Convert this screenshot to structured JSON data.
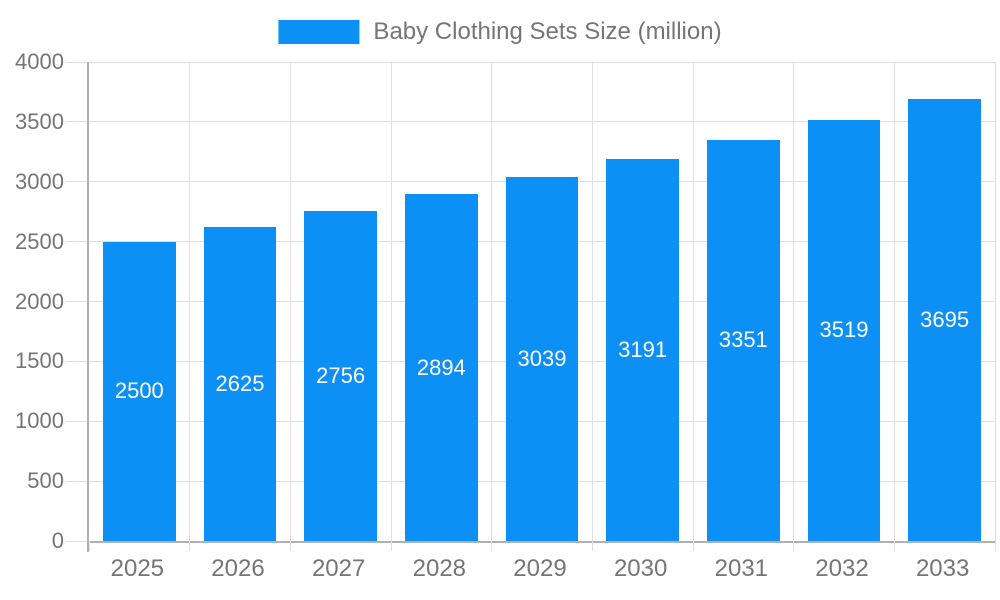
{
  "chart_data": {
    "type": "bar",
    "title": "",
    "legend": {
      "label": "Baby Clothing Sets Size (million)",
      "position": "top"
    },
    "categories": [
      "2025",
      "2026",
      "2027",
      "2028",
      "2029",
      "2030",
      "2031",
      "2032",
      "2033"
    ],
    "series": [
      {
        "name": "Baby Clothing Sets Size (million)",
        "values": [
          2500,
          2625,
          2756,
          2894,
          3039,
          3191,
          3351,
          3519,
          3695
        ]
      }
    ],
    "value_labels": [
      "2500",
      "2625",
      "2756",
      "2894",
      "3039",
      "3191",
      "3351",
      "3519",
      "3695"
    ],
    "ylabel": "",
    "xlabel": "",
    "ylim": [
      0,
      4000
    ],
    "ytick_step": 500,
    "ytick_labels": [
      "0",
      "500",
      "1000",
      "1500",
      "2000",
      "2500",
      "3000",
      "3500",
      "4000"
    ],
    "grid": true,
    "colors": {
      "bar": "#0d90f5",
      "axis_text": "#757575",
      "grid_line": "#e0e0e0",
      "axis_line": "#b1b1b1",
      "value_label": "#ffffff",
      "background": "#ffffff"
    }
  }
}
